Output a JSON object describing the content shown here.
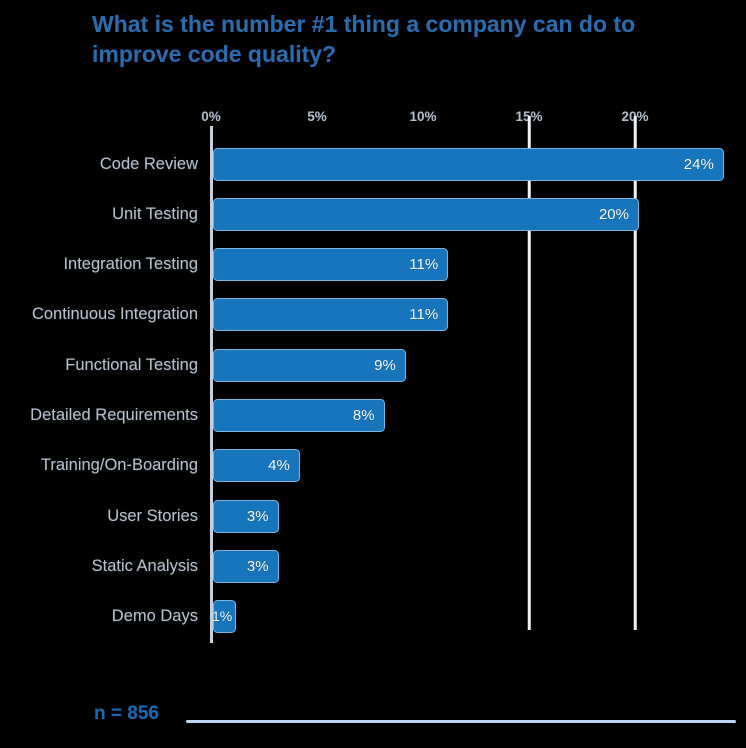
{
  "header": {
    "title_display": "What is the number #1 thing a company can do to\nimprove code quality?"
  },
  "chart_data": {
    "type": "bar",
    "orientation": "horizontal",
    "title": "What is the number #1 thing a company can do to improve code quality?",
    "categories": [
      "Code Review",
      "Unit Testing",
      "Integration Testing",
      "Continuous Integration",
      "Functional Testing",
      "Detailed Requirements",
      "Training/On-Boarding",
      "User Stories",
      "Static Analysis",
      "Demo Days"
    ],
    "values": [
      24,
      20,
      11,
      11,
      9,
      8,
      4,
      3,
      3,
      1
    ],
    "value_labels": [
      "24%",
      "20%",
      "11%",
      "11%",
      "9%",
      "8%",
      "4%",
      "3%",
      "3%",
      "1%"
    ],
    "x_ticks": [
      {
        "label": "0%",
        "value": 0
      },
      {
        "label": "5%",
        "value": 5
      },
      {
        "label": "10%",
        "value": 10
      },
      {
        "label": "15%",
        "value": 15
      },
      {
        "label": "20%",
        "value": 20
      }
    ],
    "xlim": [
      0,
      25
    ],
    "gridlines_at": [
      15,
      20
    ],
    "xlabel": "",
    "ylabel": "",
    "legend": null,
    "value_label_position": "inside-end"
  },
  "footer": {
    "sample_label": "n = 856"
  },
  "colors": {
    "background": "#000000",
    "bar_blue": "#1675bd",
    "title_blue": "#2b6cad",
    "footer_blue": "#1d6ab3",
    "rule_blue": "#b9d7f2",
    "grid_white": "#eef3f7",
    "axis_gray": "#c6cfdb",
    "tick_gray": "#b4bcc8",
    "category_gray": "#b7c0cb",
    "value_white": "#fbfdff"
  }
}
